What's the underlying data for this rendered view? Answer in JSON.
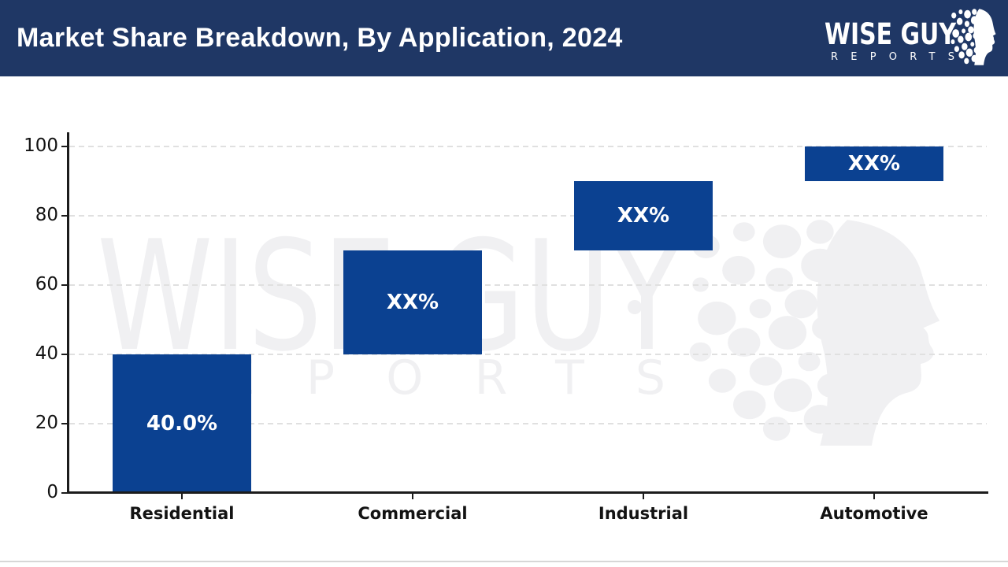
{
  "header": {
    "title": "Market Share Breakdown, By Application, 2024",
    "logo": {
      "line1": "WISE GUY",
      "line2": "REPORTS"
    }
  },
  "watermark": {
    "line1": "WISE GUY",
    "line2": "REPORTS"
  },
  "colors": {
    "header_bg": "#1f3765",
    "bar": "#0b4191",
    "bar_label": "#ffffff",
    "axis": "#1c1c1c",
    "tick_label": "#131313",
    "grid": "#e0e0e0",
    "watermark": "#f0f0f2",
    "separator": "#d7d7d7"
  },
  "chart_data": {
    "type": "bar",
    "variant": "waterfall",
    "title": "Market Share Breakdown, By Application, 2024",
    "categories": [
      "Residential",
      "Commercial",
      "Industrial",
      "Automotive"
    ],
    "bars": [
      {
        "category": "Residential",
        "start": 0,
        "end": 40,
        "value": 40,
        "label": "40.0%"
      },
      {
        "category": "Commercial",
        "start": 40,
        "end": 70,
        "value": 30,
        "label": "XX%"
      },
      {
        "category": "Industrial",
        "start": 70,
        "end": 90,
        "value": 20,
        "label": "XX%"
      },
      {
        "category": "Automotive",
        "start": 90,
        "end": 100,
        "value": 10,
        "label": "XX%"
      }
    ],
    "y_ticks": [
      0,
      20,
      40,
      60,
      80,
      100
    ],
    "ylim": [
      0,
      105
    ],
    "xlabel": "",
    "ylabel": "",
    "grid": "horizontal-dashed",
    "legend": "none",
    "bar_color": "#0b4191"
  }
}
